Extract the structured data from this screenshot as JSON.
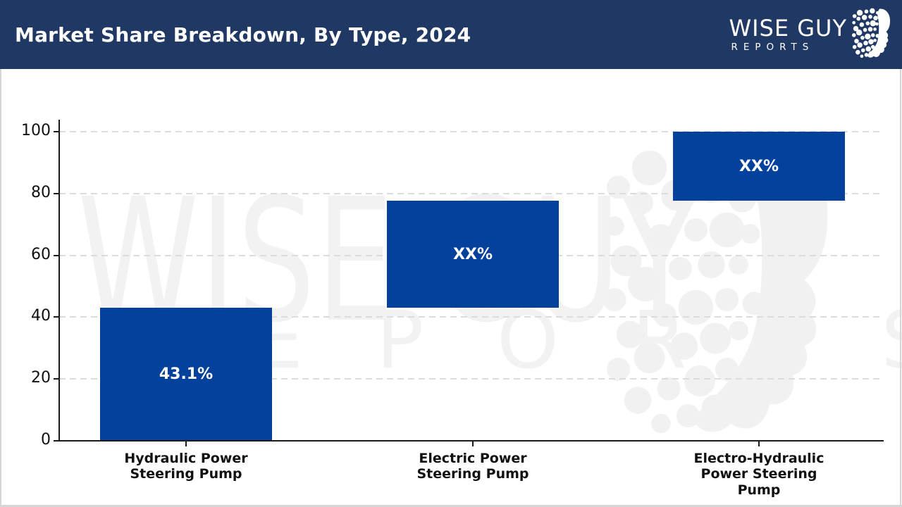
{
  "header": {
    "title": "Market Share Breakdown, By Type, 2024",
    "logo": {
      "wordmark": "WISE GUY",
      "subtext": "REPORTS"
    }
  },
  "watermark": {
    "wordmark": "WISE GUY",
    "subtext": "R E P O R T S"
  },
  "chart_data": {
    "type": "bar",
    "subtype": "floating-waterfall",
    "title": "Market Share Breakdown, By Type, 2024",
    "categories": [
      "Hydraulic Power Steering Pump",
      "Electric Power Steering Pump",
      "Electro-Hydraulic Power Steering Pump"
    ],
    "category_label_lines": [
      [
        "Hydraulic Power",
        "Steering Pump"
      ],
      [
        "Electric Power",
        "Steering Pump"
      ],
      [
        "Electro-Hydraulic",
        "Power Steering",
        "Pump"
      ]
    ],
    "segments": [
      {
        "category": "Hydraulic Power Steering Pump",
        "start": 0,
        "end": 43.1,
        "value": 43.1,
        "label": "43.1%"
      },
      {
        "category": "Electric Power Steering Pump",
        "start": 43.1,
        "end": 77.6,
        "value": 34.5,
        "label": "XX%"
      },
      {
        "category": "Electro-Hydraulic Power Steering Pump",
        "start": 77.6,
        "end": 99.9,
        "value": 22.3,
        "label": "XX%"
      }
    ],
    "xlabel": "",
    "ylabel": "",
    "ylim": [
      0,
      104
    ],
    "yticks": [
      0,
      20,
      40,
      60,
      80,
      100
    ],
    "grid": "horizontal-dashed",
    "legend": "none",
    "colors": {
      "bar": "#04419C",
      "bar_label": "#FFFFFF",
      "axis": "#1a1a1a",
      "grid": "#DCDCDC",
      "tick_label": "#111111",
      "header_bg": "#1F3864",
      "watermark": "#F2F2F2"
    }
  }
}
